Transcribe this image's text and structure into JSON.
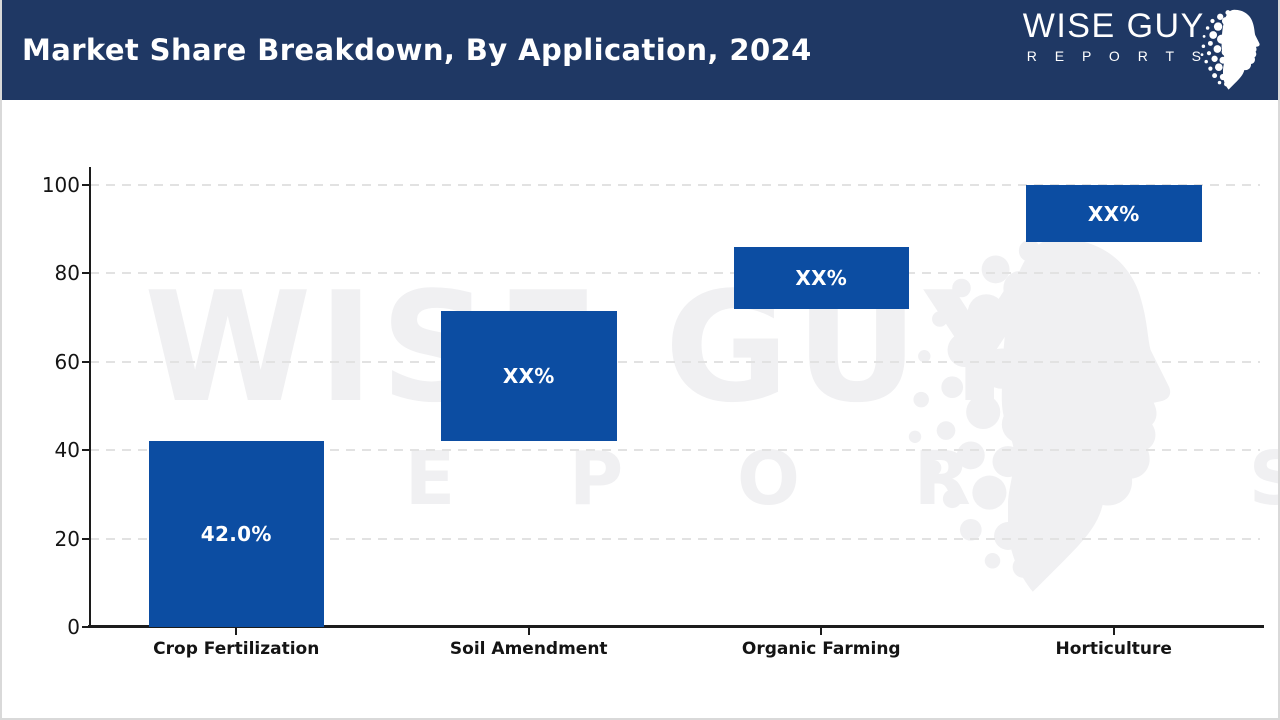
{
  "header": {
    "title": "Market Share Breakdown, By Application, 2024",
    "bg_color": "#1f3864"
  },
  "logo": {
    "line1": "WISE GUY",
    "line2": "R E P O R T S",
    "icon": "dotted-head-profile"
  },
  "watermark": {
    "line1": "WISE GUY",
    "line2": "R E P O R T S",
    "icon": "dotted-head-profile",
    "color": "#f0f0f2"
  },
  "chart_data": {
    "type": "bar",
    "subtype": "floating-waterfall",
    "title": "Market Share Breakdown, By Application, 2024",
    "categories": [
      "Crop Fertilization",
      "Soil Amendment",
      "Organic Farming",
      "Horticulture"
    ],
    "segments": [
      {
        "category": "Crop Fertilization",
        "start": 0,
        "end": 42,
        "label": "42.0%"
      },
      {
        "category": "Soil Amendment",
        "start": 42,
        "end": 71.5,
        "label": "XX%"
      },
      {
        "category": "Organic Farming",
        "start": 72,
        "end": 86,
        "label": "XX%"
      },
      {
        "category": "Horticulture",
        "start": 87,
        "end": 100,
        "label": "XX%"
      }
    ],
    "ylim": [
      0,
      100
    ],
    "yticks": [
      0,
      20,
      40,
      60,
      80,
      100
    ],
    "xlabel": "",
    "ylabel": "",
    "grid": "horizontal-dashed",
    "legend": "none",
    "bar_color": "#0c4da2",
    "bar_label_color": "#ffffff",
    "axis_color": "#1c1c1c",
    "gridline_color": "#e2e2e2"
  }
}
